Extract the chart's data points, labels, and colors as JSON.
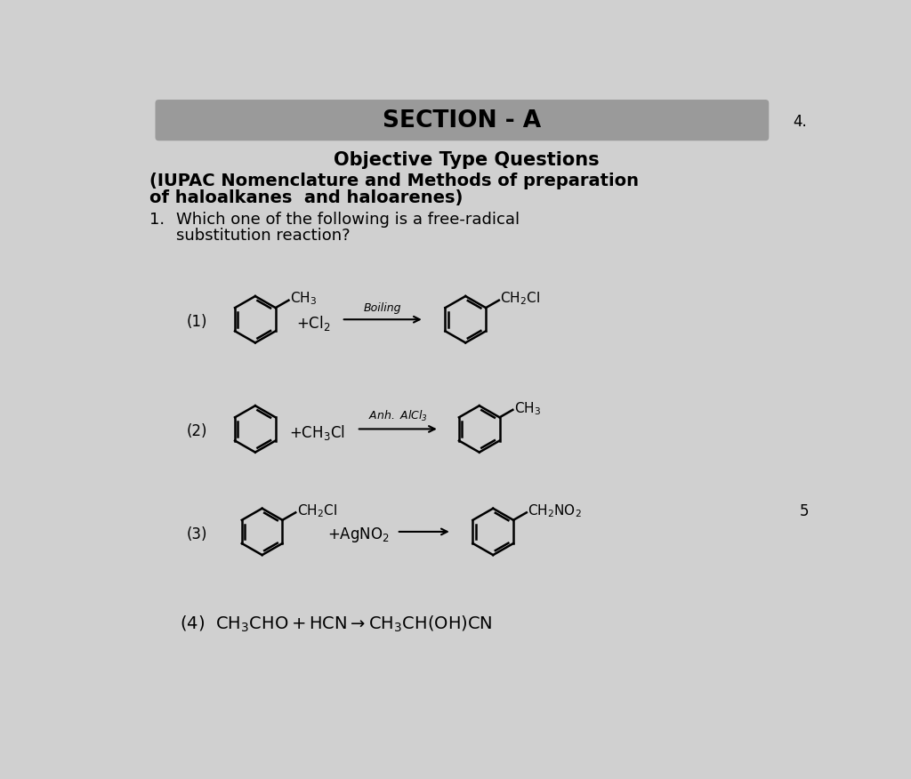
{
  "section_header": "SECTION - A",
  "subtitle": "Objective Type Questions",
  "bold_line1": "(IUPAC Nomenclature and Methods of preparation",
  "bold_line2": "of haloalkanes  and haloarenes)",
  "page_num": "4.",
  "page_num2": "5",
  "header_bg": "#9e9e9e",
  "page_bg": "#d0d0d0",
  "text_color": "#000000",
  "font_size_header": 19,
  "font_size_subtitle": 15,
  "font_size_bold": 14,
  "font_size_question": 13,
  "font_size_option": 12,
  "font_size_chem": 12
}
